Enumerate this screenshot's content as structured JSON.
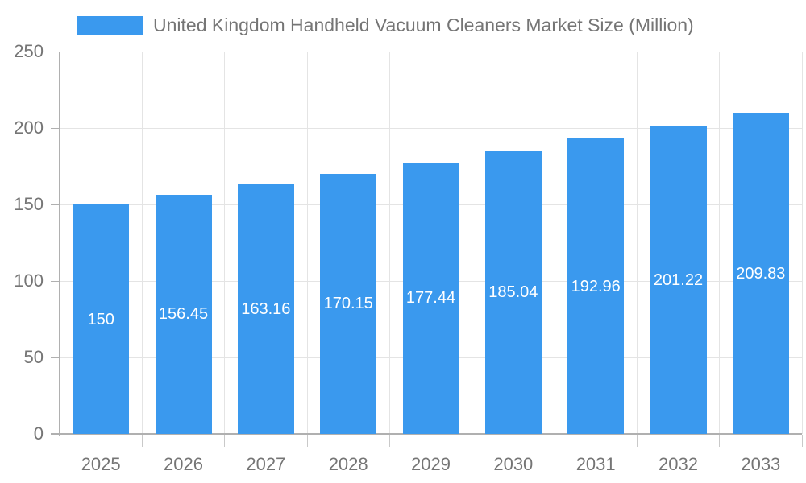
{
  "legend": {
    "label": "United Kingdom Handheld Vacuum Cleaners Market Size (Million)"
  },
  "chart_data": {
    "type": "bar",
    "title": "United Kingdom Handheld Vacuum Cleaners Market Size (Million)",
    "categories": [
      "2025",
      "2026",
      "2027",
      "2028",
      "2029",
      "2030",
      "2031",
      "2032",
      "2033"
    ],
    "values": [
      150,
      156.45,
      163.16,
      170.15,
      177.44,
      185.04,
      192.96,
      201.22,
      209.83
    ],
    "value_labels": [
      "150",
      "156.45",
      "163.16",
      "170.15",
      "177.44",
      "185.04",
      "192.96",
      "201.22",
      "209.83"
    ],
    "xlabel": "",
    "ylabel": "",
    "ylim": [
      0,
      250
    ],
    "yticks": [
      0,
      50,
      100,
      150,
      200,
      250
    ],
    "grid": true,
    "legend_position": "top-left",
    "colors": {
      "bar": "#3a99ee",
      "bar_label": "#ffffff",
      "axis": "#b0b0b0",
      "grid": "#e4e4e4",
      "tick_mark": "#c9c9c9",
      "tick_text": "#757575"
    }
  }
}
